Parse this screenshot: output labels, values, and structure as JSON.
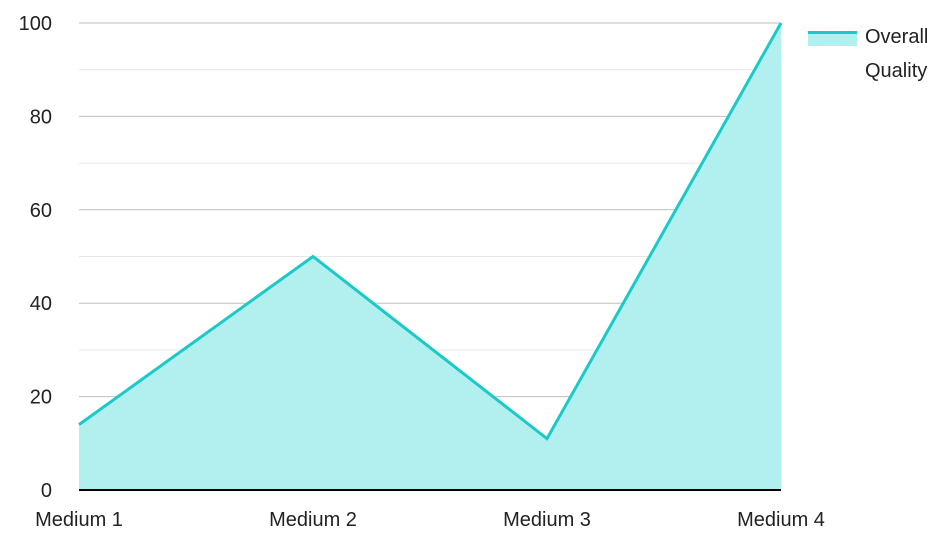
{
  "chart_data": {
    "type": "area",
    "categories": [
      "Medium 1",
      "Medium 2",
      "Medium 3",
      "Medium 4"
    ],
    "series": [
      {
        "name": "Overall Quality",
        "legend_lines": [
          "Overall",
          "Quality"
        ],
        "values": [
          14,
          50,
          11,
          100
        ],
        "line_color": "#1cc9c9",
        "fill_color": "#b2efef"
      }
    ],
    "ylim": [
      0,
      100
    ],
    "y_ticks": [
      0,
      20,
      40,
      60,
      80,
      100
    ],
    "grid": true,
    "legend_position": "top-right",
    "colors": {
      "major_grid": "#bfbfbf",
      "minor_grid": "#e6e6e6",
      "axis": "#000000"
    }
  }
}
